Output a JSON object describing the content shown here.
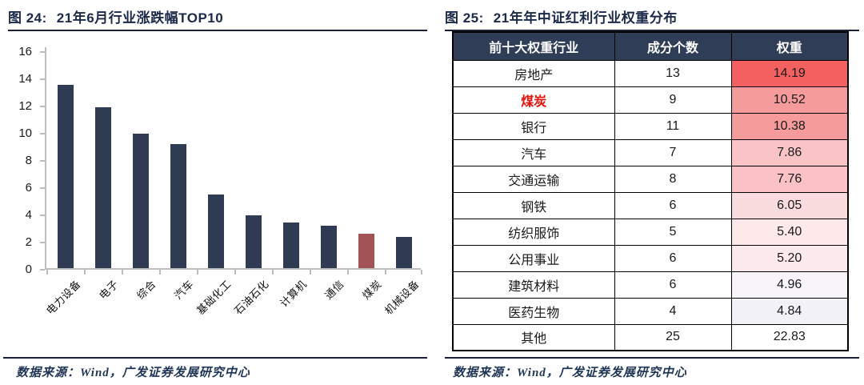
{
  "left": {
    "fig_label": "图 24:",
    "title": "21年6月行业涨跌幅TOP10",
    "source": "数据来源：Wind，广发证券发展研究中心"
  },
  "right": {
    "fig_label": "图 25:",
    "title": "21年年中证红利行业权重分布",
    "source": "数据来源：Wind，广发证券发展研究中心",
    "table": {
      "headers": [
        "前十大权重行业",
        "成分个数",
        "权重"
      ],
      "highlight_row": 1,
      "highlight_text_color": "#e8100c",
      "weight_cell_colors": [
        "#F2605F",
        "#F69B9B",
        "#F69B9B",
        "#FAC4C6",
        "#FAC2C5",
        "#FBDCDE",
        "#FDE9EA",
        "#FCE9EC",
        "#F7F5FA",
        "#F2F1F8",
        "#FFFFFF"
      ]
    }
  },
  "chart_data": [
    {
      "type": "bar",
      "title": "21年6月行业涨跌幅TOP10",
      "categories": [
        "电力设备",
        "电子",
        "综合",
        "汽车",
        "基础化工",
        "石油石化",
        "计算机",
        "通信",
        "煤炭",
        "机械设备"
      ],
      "values": [
        13.5,
        11.8,
        9.9,
        9.1,
        5.4,
        3.9,
        3.35,
        3.1,
        2.55,
        2.3
      ],
      "xlabel": "",
      "ylabel": "",
      "ylim": [
        0,
        16
      ],
      "ytick_step": 2,
      "grid": false,
      "legend": false,
      "bar_color": "#2e3b52",
      "highlight_index": 8,
      "highlight_color": "#a25355"
    },
    {
      "type": "table",
      "title": "21年年中证红利行业权重分布",
      "columns": [
        "前十大权重行业",
        "成分个数",
        "权重"
      ],
      "rows": [
        [
          "房地产",
          "13",
          "14.19"
        ],
        [
          "煤炭",
          "9",
          "10.52"
        ],
        [
          "银行",
          "11",
          "10.38"
        ],
        [
          "汽车",
          "7",
          "7.86"
        ],
        [
          "交通运输",
          "8",
          "7.76"
        ],
        [
          "钢铁",
          "6",
          "6.05"
        ],
        [
          "纺织服饰",
          "5",
          "5.40"
        ],
        [
          "公用事业",
          "6",
          "5.20"
        ],
        [
          "建筑材料",
          "6",
          "4.96"
        ],
        [
          "医药生物",
          "4",
          "4.84"
        ],
        [
          "其他",
          "25",
          "22.83"
        ]
      ]
    }
  ]
}
